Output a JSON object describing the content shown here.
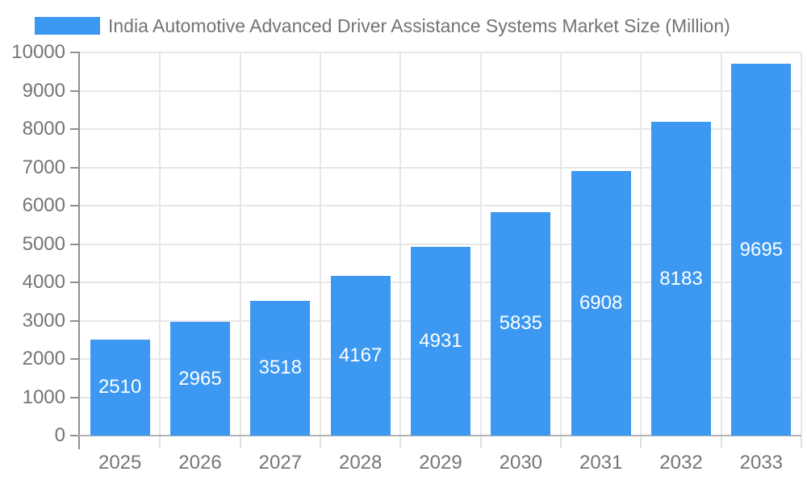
{
  "legend": {
    "items": [
      {
        "label": "India Automotive Advanced Driver Assistance Systems Market Size (Million)",
        "swatch_color": "#3C98F0"
      }
    ]
  },
  "chart_data": {
    "type": "bar",
    "title": "India Automotive Advanced Driver Assistance Systems Market Size (Million)",
    "categories": [
      "2025",
      "2026",
      "2027",
      "2028",
      "2029",
      "2030",
      "2031",
      "2032",
      "2033"
    ],
    "series": [
      {
        "name": "India Automotive Advanced Driver Assistance Systems Market Size (Million)",
        "color": "#3C98F0",
        "values": [
          2510,
          2965,
          3518,
          4167,
          4931,
          5835,
          6908,
          8183,
          9695
        ]
      }
    ],
    "xlabel": "",
    "ylabel": "",
    "ylim": [
      0,
      10000
    ],
    "ytick_step": 1000,
    "yticklabels": [
      "0",
      "1000",
      "2000",
      "3000",
      "4000",
      "5000",
      "6000",
      "7000",
      "8000",
      "9000",
      "10000"
    ],
    "grid": true,
    "legend_position": "top",
    "value_labels": {
      "show": true,
      "position": "inside-center",
      "color": "#ffffff"
    }
  },
  "colors": {
    "bar": "#3C98F0",
    "axis_text": "#757575",
    "title_text": "#737373",
    "gridline": "#e7e7e7",
    "y_axis_line": "#8f8f8f",
    "x_axis_line": "#b3b3b3",
    "x_tick": "#e0e0e0",
    "background": "#ffffff"
  }
}
